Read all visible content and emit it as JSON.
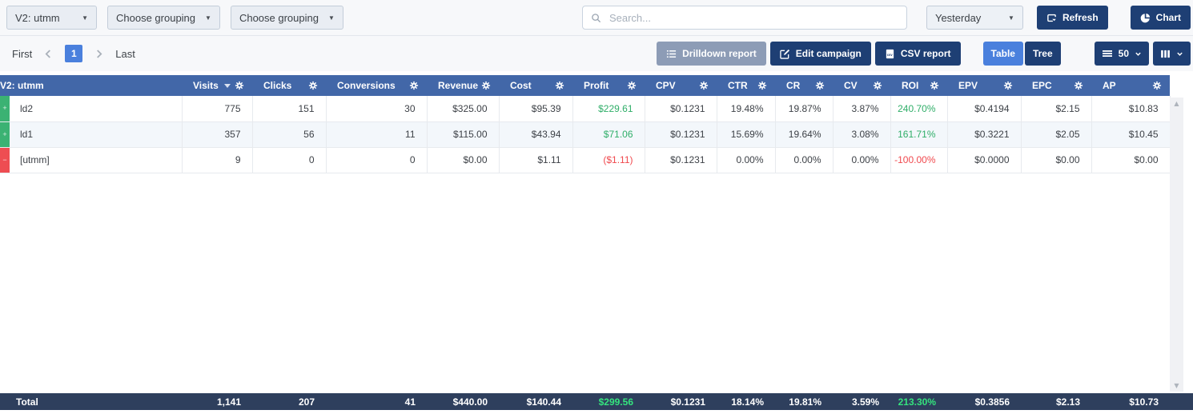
{
  "toolbar": {
    "campaign_select": "V2: utmm",
    "grouping_1": "Choose grouping",
    "grouping_2": "Choose grouping",
    "search_placeholder": "Search...",
    "date_range": "Yesterday",
    "refresh_label": "Refresh",
    "chart_label": "Chart"
  },
  "pagination": {
    "first_label": "First",
    "current_page": "1",
    "last_label": "Last"
  },
  "actions": {
    "drilldown_label": "Drilldown report",
    "edit_campaign_label": "Edit campaign",
    "csv_label": "CSV report",
    "view_table_label": "Table",
    "view_tree_label": "Tree",
    "rows_per_page": "50"
  },
  "icons": {
    "search": "magnifier",
    "refresh": "rect-arrow-refresh",
    "chart": "pie-chart",
    "drilldown": "bullet-list",
    "edit": "pencil-square",
    "csv": "csv-file",
    "rows": "hamburger-lines",
    "columns": "vertical-bars",
    "column_settings": "gear",
    "sort": "caret-down",
    "dropdown": "caret-down"
  },
  "table": {
    "columns": [
      {
        "label": "V2: utmm"
      },
      {
        "label": "Visits",
        "sorted": true
      },
      {
        "label": "Clicks"
      },
      {
        "label": "Conversions"
      },
      {
        "label": "Revenue"
      },
      {
        "label": "Cost"
      },
      {
        "label": "Profit"
      },
      {
        "label": "CPV"
      },
      {
        "label": "CTR"
      },
      {
        "label": "CR"
      },
      {
        "label": "CV"
      },
      {
        "label": "ROI"
      },
      {
        "label": "EPV"
      },
      {
        "label": "EPC"
      },
      {
        "label": "AP"
      }
    ],
    "rows": [
      {
        "state": "positive",
        "name": "ld2",
        "visits": "775",
        "clicks": "151",
        "conversions": "30",
        "revenue": "$325.00",
        "cost": "$95.39",
        "profit": "$229.61",
        "cpv": "$0.1231",
        "ctr": "19.48%",
        "cr": "19.87%",
        "cv": "3.87%",
        "roi": "240.70%",
        "epv": "$0.4194",
        "epc": "$2.15",
        "ap": "$10.83"
      },
      {
        "state": "positive",
        "name": "ld1",
        "visits": "357",
        "clicks": "56",
        "conversions": "11",
        "revenue": "$115.00",
        "cost": "$43.94",
        "profit": "$71.06",
        "cpv": "$0.1231",
        "ctr": "15.69%",
        "cr": "19.64%",
        "cv": "3.08%",
        "roi": "161.71%",
        "epv": "$0.3221",
        "epc": "$2.05",
        "ap": "$10.45"
      },
      {
        "state": "negative",
        "name": "[utmm]",
        "visits": "9",
        "clicks": "0",
        "conversions": "0",
        "revenue": "$0.00",
        "cost": "$1.11",
        "profit": "($1.11)",
        "cpv": "$0.1231",
        "ctr": "0.00%",
        "cr": "0.00%",
        "cv": "0.00%",
        "roi": "-100.00%",
        "epv": "$0.0000",
        "epc": "$0.00",
        "ap": "$0.00"
      }
    ],
    "total": {
      "label": "Total",
      "visits": "1,141",
      "clicks": "207",
      "conversions": "41",
      "revenue": "$440.00",
      "cost": "$140.44",
      "profit": "$299.56",
      "cpv": "$0.1231",
      "ctr": "18.14%",
      "cr": "19.81%",
      "cv": "3.59%",
      "roi": "213.30%",
      "epv": "$0.3856",
      "epc": "$2.13",
      "ap": "$10.73"
    }
  },
  "colors": {
    "header_blue": "#4267a8",
    "total_navy": "#2e3f5d",
    "accent_blue": "#4a80dd",
    "button_navy": "#1e3f74",
    "muted_button": "#8d9cb6",
    "positive_green": "#2fae68",
    "negative_red": "#f0494e",
    "total_green": "#35e47e",
    "indicator_green": "#3bb273",
    "indicator_red": "#ee4d52"
  }
}
